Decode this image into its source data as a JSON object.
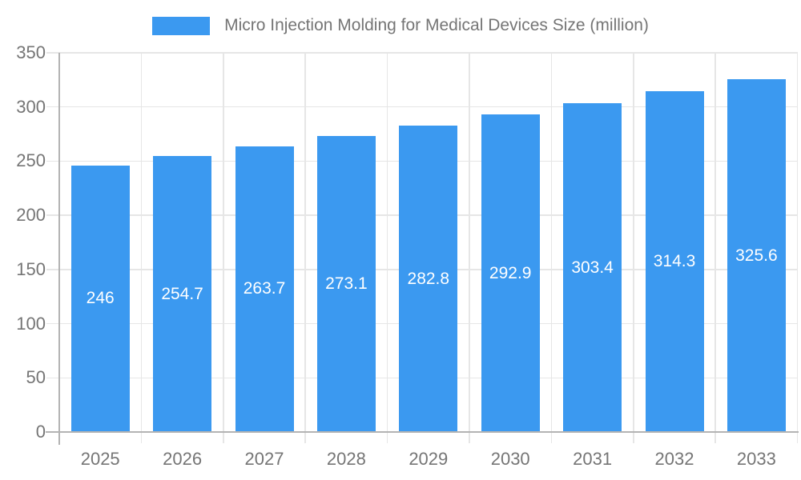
{
  "legend": {
    "label": "Micro Injection Molding for Medical Devices Size (million)"
  },
  "colors": {
    "bar": "#3b99f0",
    "grid": "#e6e6e6",
    "axis": "#b3b3b3",
    "tick_text": "#757575",
    "value_label": "#ffffff",
    "background": "#ffffff"
  },
  "chart_data": {
    "type": "bar",
    "title": "Micro Injection Molding for Medical Devices Size (million)",
    "categories": [
      "2025",
      "2026",
      "2027",
      "2028",
      "2029",
      "2030",
      "2031",
      "2032",
      "2033"
    ],
    "values": [
      246,
      254.7,
      263.7,
      273.1,
      282.8,
      292.9,
      303.4,
      314.3,
      325.6
    ],
    "series": [
      {
        "name": "Micro Injection Molding for Medical Devices Size (million)",
        "values": [
          246,
          254.7,
          263.7,
          273.1,
          282.8,
          292.9,
          303.4,
          314.3,
          325.6
        ]
      }
    ],
    "xlabel": "",
    "ylabel": "",
    "ylim": [
      0,
      350
    ],
    "yticks": [
      0,
      50,
      100,
      150,
      200,
      250,
      300,
      350
    ],
    "grid": true,
    "value_labels_shown": true,
    "value_label_position": "inside-center",
    "legend_position": "top-center"
  }
}
